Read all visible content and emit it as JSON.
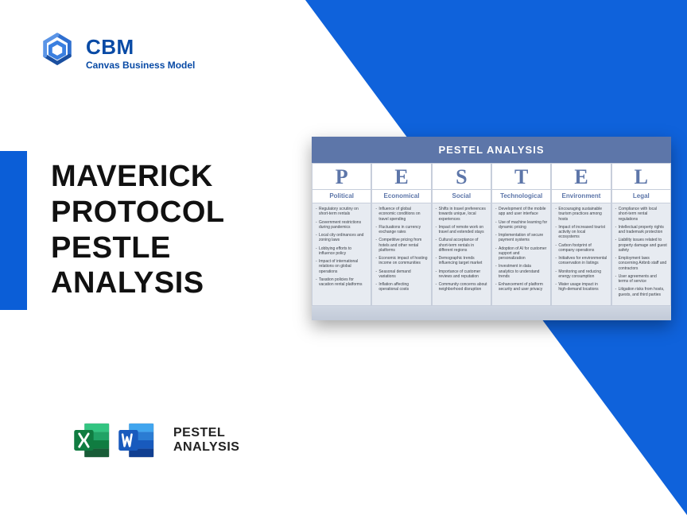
{
  "brand": {
    "name": "CBM",
    "tagline": "Canvas Business Model",
    "color": "#084aa5"
  },
  "headline": {
    "line1": "MAVERICK",
    "line2": "PROTOCOL",
    "line3": "PESTLE",
    "line4": "ANALYSIS"
  },
  "footer": {
    "label_line1": "PESTEL",
    "label_line2": "ANALYSIS"
  },
  "card": {
    "title": "PESTEL ANALYSIS",
    "columns": [
      {
        "letter": "P",
        "label": "Political",
        "items": [
          "Regulatory scrutiny on short-term rentals",
          "Government restrictions during pandemics",
          "Local city ordinances and zoning laws",
          "Lobbying efforts to influence policy",
          "Impact of international relations on global operations",
          "Taxation policies for vacation rental platforms"
        ]
      },
      {
        "letter": "E",
        "label": "Economical",
        "items": [
          "Influence of global economic conditions on travel spending",
          "Fluctuations in currency exchange rates",
          "Competitive pricing from hotels and other rental platforms",
          "Economic impact of hosting income on communities",
          "Seasonal demand variations",
          "Inflation affecting operational costs"
        ]
      },
      {
        "letter": "S",
        "label": "Social",
        "items": [
          "Shifts in travel preferences towards unique, local experiences",
          "Impact of remote work on travel and extended stays",
          "Cultural acceptance of short-term rentals in different regions",
          "Demographic trends influencing target market",
          "Importance of customer reviews and reputation",
          "Community concerns about neighborhood disruption"
        ]
      },
      {
        "letter": "T",
        "label": "Technological",
        "items": [
          "Development of the mobile app and user interface",
          "Use of machine learning for dynamic pricing",
          "Implementation of secure payment systems",
          "Adoption of AI for customer support and personalization",
          "Investment in data analytics to understand trends",
          "Enhancement of platform security and user privacy"
        ]
      },
      {
        "letter": "E",
        "label": "Environment",
        "items": [
          "Encouraging sustainable tourism practices among hosts",
          "Impact of increased tourist activity on local ecosystems",
          "Carbon footprint of company operations",
          "Initiatives for environmental conservation in listings",
          "Monitoring and reducing energy consumption",
          "Water usage impact in high-demand locations"
        ]
      },
      {
        "letter": "L",
        "label": "Legal",
        "items": [
          "Compliance with local short-term rental regulations",
          "Intellectual property rights and trademark protection",
          "Liability issues related to property damage and guest safety",
          "Employment laws concerning Airbnb staff and contractors",
          "User agreements and terms of service",
          "Litigation risks from hosts, guests, and third parties"
        ]
      }
    ]
  },
  "colors": {
    "triangle": "#0b5ed7",
    "card_header": "#5d76a9",
    "excel_dark": "#107c41",
    "excel_light": "#21a366",
    "word_dark": "#185abd",
    "word_light": "#41a5ee"
  }
}
